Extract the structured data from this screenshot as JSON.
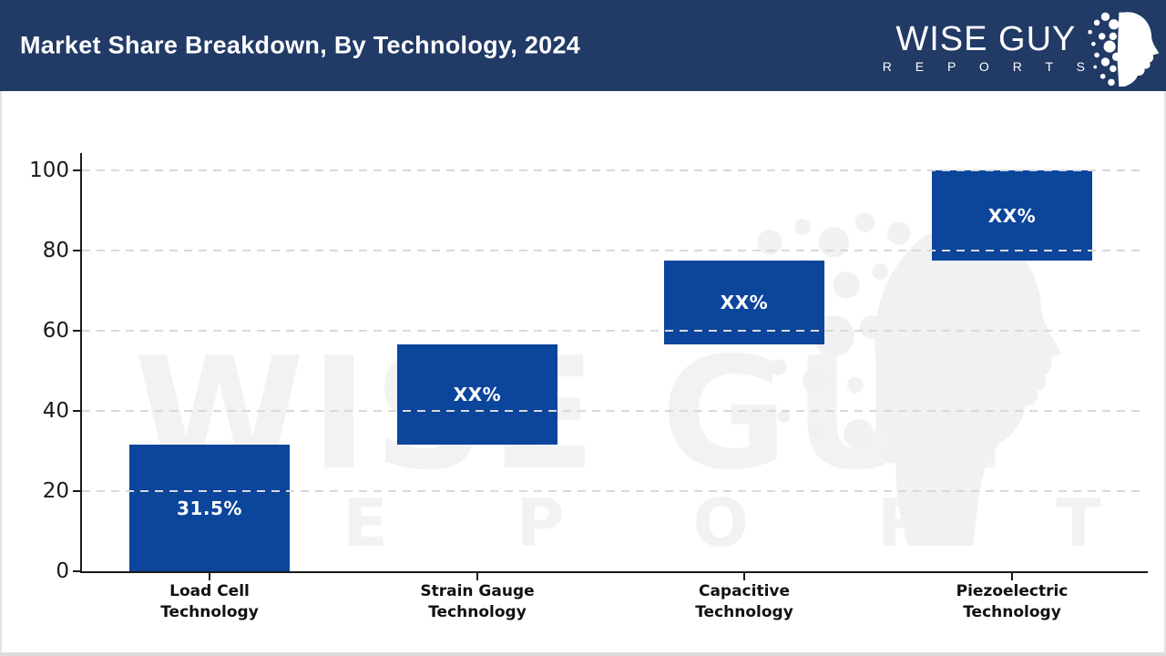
{
  "header": {
    "title": "Market Share Breakdown, By Technology, 2024",
    "logo": {
      "wordmark": "WISE GUY",
      "subtitle": "R E P O R T S"
    }
  },
  "watermark": {
    "wordmark": "WISE GUY",
    "subtitle": "R E P O R T S"
  },
  "chart_data": {
    "type": "bar",
    "variant": "waterfall",
    "title": "Market Share Breakdown, By Technology, 2024",
    "xlabel": "",
    "ylabel": "",
    "ylim": [
      0,
      104
    ],
    "yticks": [
      0,
      20,
      40,
      60,
      80,
      100
    ],
    "grid": {
      "horizontal": true,
      "style": "dashed"
    },
    "legend": "none",
    "categories": [
      "Load Cell Technology",
      "Strain Gauge Technology",
      "Capacitive Technology",
      "Piezoelectric Technology"
    ],
    "category_lines": [
      [
        "Load Cell",
        "Technology"
      ],
      [
        "Strain Gauge",
        "Technology"
      ],
      [
        "Capacitive",
        "Technology"
      ],
      [
        "Piezoelectric",
        "Technology"
      ]
    ],
    "segments": [
      {
        "start": 0,
        "end": 31.5,
        "label": "31.5%"
      },
      {
        "start": 31.5,
        "end": 56.5,
        "label": "XX%"
      },
      {
        "start": 56.5,
        "end": 77.5,
        "label": "XX%"
      },
      {
        "start": 77.5,
        "end": 100,
        "label": "XX%"
      }
    ]
  },
  "colors": {
    "header_bg": "#213a66",
    "bar": "#0b459c",
    "axis": "#1a1a1a",
    "gridline": "#d9d9d9",
    "bar_label": "#ffffff",
    "watermark": "#f2f2f2"
  }
}
